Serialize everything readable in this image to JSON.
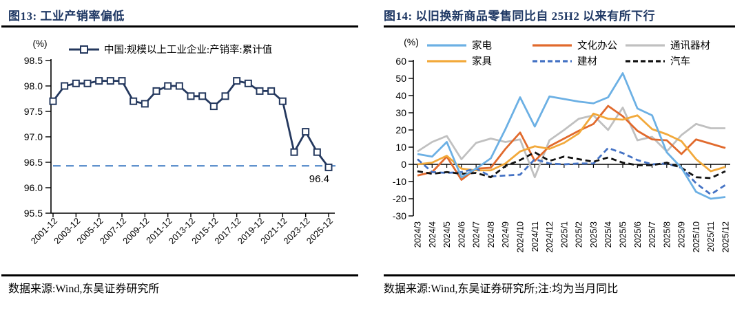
{
  "accent_colors": {
    "title_navy": "#1F3864",
    "rule_black": "#000000"
  },
  "chart_data": [
    {
      "type": "line",
      "title": "图13: 工业产销率偏低",
      "source_note": "数据来源:Wind,东吴证券研究所",
      "unit_label": "(%)",
      "legend": "中国:规模以上工业企业:产销率:累计值",
      "legend_position": "top",
      "grid": false,
      "marker": "hollow-square",
      "line_color": "#24385E",
      "x": [
        "2001-12",
        "2002-12",
        "2003-12",
        "2004-12",
        "2005-12",
        "2006-12",
        "2007-12",
        "2008-12",
        "2009-12",
        "2010-12",
        "2011-12",
        "2012-12",
        "2013-12",
        "2014-12",
        "2015-12",
        "2016-12",
        "2017-12",
        "2018-12",
        "2019-12",
        "2020-12",
        "2021-12",
        "2022-12",
        "2023-12",
        "2024-12",
        "2025-12"
      ],
      "x_tick_labels": [
        "2001-12",
        "2003-12",
        "2005-12",
        "2007-12",
        "2009-12",
        "2011-12",
        "2013-12",
        "2015-12",
        "2017-12",
        "2019-12",
        "2021-12",
        "2023-12",
        "2025-12"
      ],
      "x_label_rotation": 45,
      "values": [
        97.7,
        98.0,
        98.05,
        98.05,
        98.1,
        98.1,
        98.1,
        97.7,
        97.65,
        97.9,
        98.0,
        98.0,
        97.8,
        97.8,
        97.6,
        97.8,
        98.1,
        98.05,
        97.9,
        97.9,
        97.7,
        96.7,
        97.1,
        96.7,
        96.4
      ],
      "ylim": [
        95.5,
        98.5
      ],
      "yticks": [
        95.5,
        96.0,
        96.5,
        97.0,
        97.5,
        98.0,
        98.5
      ],
      "ref_line": {
        "value": 96.43,
        "label": "96.4",
        "color": "#4E86C8",
        "style": "dashed"
      }
    },
    {
      "type": "line",
      "title": "图14: 以旧换新商品零售同比自 25H2 以来有所下行",
      "source_note": "数据来源:Wind,东吴证券研究所;注:均为当月同比",
      "unit_label": "(%)",
      "legend_position": "top",
      "legend_rows": 2,
      "grid": false,
      "x": [
        "2024/3",
        "2024/4",
        "2024/5",
        "2024/6",
        "2024/7",
        "2024/8",
        "2024/9",
        "2024/10",
        "2024/11",
        "2024/12",
        "2025/1",
        "2025/2",
        "2025/3",
        "2025/4",
        "2025/5",
        "2025/6",
        "2025/7",
        "2025/8",
        "2025/9",
        "2025/10",
        "2025/11",
        "2025/12"
      ],
      "x_label_rotation": 90,
      "ylim": [
        -30,
        60
      ],
      "yticks": [
        -30,
        -20,
        -10,
        0,
        10,
        20,
        30,
        40,
        50,
        60
      ],
      "series": [
        {
          "name": "家电",
          "color": "#6CB0E4",
          "dashed": false,
          "values": [
            6,
            4.5,
            13,
            -7.5,
            -2.5,
            3.5,
            20.5,
            39,
            22,
            39.5,
            38,
            36.5,
            35.5,
            39,
            53,
            32.5,
            28.5,
            7,
            -2,
            -16,
            -20,
            -19
          ]
        },
        {
          "name": "文化办公",
          "color": "#E16A2D",
          "dashed": false,
          "values": [
            -6.5,
            -4.5,
            4.5,
            -9,
            -2.5,
            -2,
            9,
            18.5,
            2,
            10.5,
            15,
            19.5,
            23.5,
            34,
            28,
            19.5,
            14.5,
            14,
            6,
            14.5,
            12,
            9.5
          ]
        },
        {
          "name": "通讯器材",
          "color": "#C0C0C0",
          "dashed": false,
          "values": [
            7.5,
            13,
            16.5,
            3,
            12.5,
            15,
            13,
            14.5,
            -7.5,
            14,
            20,
            26.5,
            28.5,
            20,
            33,
            14,
            16,
            7.5,
            17,
            23.5,
            21,
            21
          ]
        },
        {
          "name": "家具",
          "color": "#F2A93B",
          "dashed": false,
          "values": [
            0,
            1,
            5,
            -2.5,
            -3.5,
            -3.5,
            0.5,
            7.5,
            10.5,
            9,
            12.5,
            18,
            29.5,
            26.5,
            26,
            28.5,
            20.5,
            17.5,
            13.5,
            3,
            -4,
            -1.5
          ]
        },
        {
          "name": "建材",
          "color": "#4472C4",
          "dashed": true,
          "values": [
            3,
            -4.5,
            -5,
            -4.5,
            -2.5,
            -7,
            -6.5,
            -6,
            3,
            0.5,
            0,
            0.5,
            0.5,
            9.5,
            6.5,
            2.5,
            0,
            0.5,
            -2,
            -11,
            -17.5,
            -12
          ]
        },
        {
          "name": "汽车",
          "color": "#111111",
          "dashed": true,
          "values": [
            -4,
            -5.5,
            -4.5,
            -5.5,
            -5,
            -7.5,
            -1,
            2.5,
            7,
            2,
            4.5,
            3,
            1.5,
            4,
            1,
            -0.5,
            -0.5,
            1,
            -2,
            -7.5,
            -8,
            -4
          ]
        }
      ]
    }
  ]
}
